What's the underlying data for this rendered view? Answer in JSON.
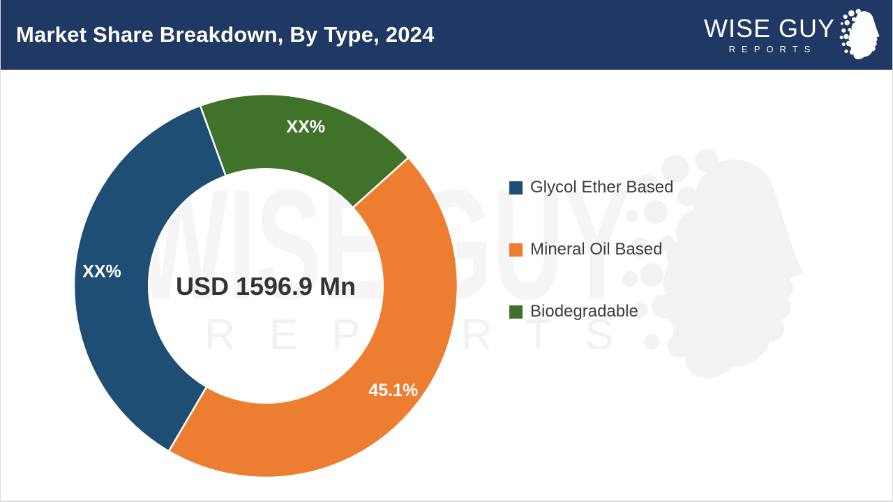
{
  "header": {
    "title": "Market Share Breakdown, By Type, 2024",
    "bg_color": "#1f3864",
    "logo": {
      "line1": "WISE GUY",
      "line2": "REPORTS"
    }
  },
  "watermark": {
    "line1": "WISE GUY",
    "line2": "REPORTS"
  },
  "chart_data": {
    "type": "pie",
    "subtype": "donut",
    "title": "Market Share Breakdown, By Type, 2024",
    "center_label": "USD 1596.9 Mn",
    "start_angle_deg": 110,
    "direction": "clockwise",
    "inner_radius_ratio": 0.61,
    "legend_position": "right",
    "segments": [
      {
        "name": "Biodegradable",
        "display_label": "XX%",
        "value_pct": 18.9,
        "color": "#41722a"
      },
      {
        "name": "Mineral Oil Based",
        "display_label": "45.1%",
        "value_pct": 45.1,
        "color": "#ed7d31"
      },
      {
        "name": "Glycol Ether Based",
        "display_label": "XX%",
        "value_pct": 36.0,
        "color": "#1f4e74"
      }
    ],
    "legend": [
      {
        "label": "Glycol Ether Based",
        "color": "#1f4e74"
      },
      {
        "label": "Mineral Oil Based",
        "color": "#ed7d31"
      },
      {
        "label": "Biodegradable",
        "color": "#41722a"
      }
    ]
  }
}
